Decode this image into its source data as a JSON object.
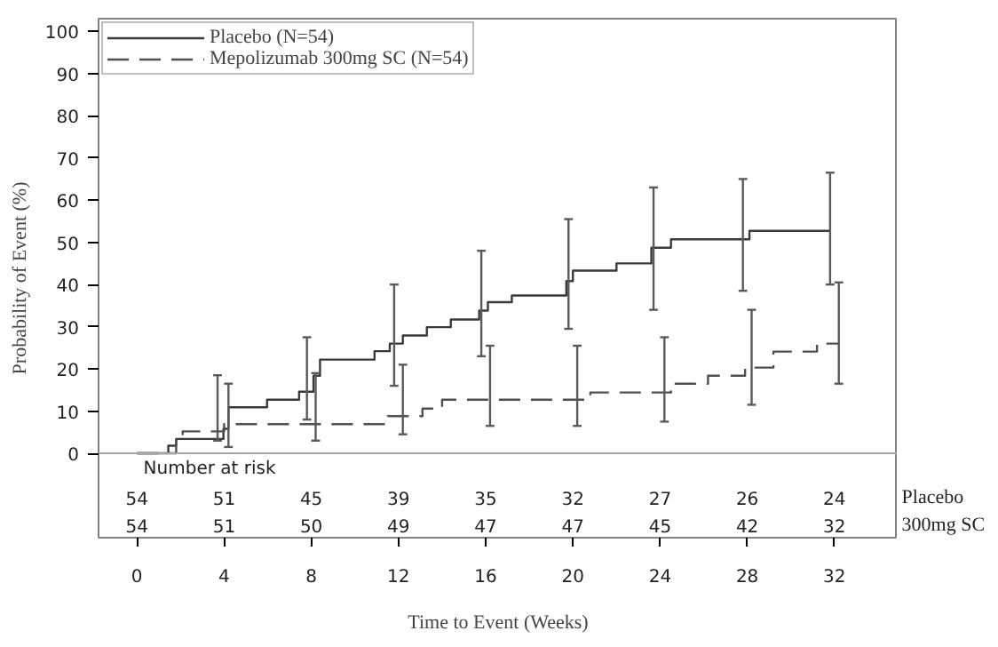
{
  "chart_data": {
    "type": "step",
    "xlabel": "Time to Event (Weeks)",
    "ylabel": "Probability of Event (%)",
    "xlim": [
      -1.76,
      34.9
    ],
    "ylim": [
      -20,
      103
    ],
    "xticks": [
      0,
      4,
      8,
      12,
      16,
      20,
      24,
      28,
      32
    ],
    "yticks": [
      0,
      10,
      20,
      30,
      40,
      50,
      60,
      70,
      80,
      90,
      100
    ],
    "grid": false,
    "legend": "top left",
    "marker": "none",
    "ref_lines": [
      {
        "axis": "y",
        "value": 0,
        "color": "#a6a6a6"
      }
    ],
    "series": [
      {
        "name": "Placebo (N=54)",
        "color": "#3a3a3a",
        "line_style": "solid",
        "x": [
          0,
          1.44,
          1.8,
          3.7,
          3.97,
          4.2,
          5.97,
          7.44,
          7.8,
          8.1,
          8.4,
          10.9,
          11.6,
          11.8,
          12.2,
          13.3,
          14.4,
          15.7,
          15.8,
          16.1,
          17.2,
          19.7,
          19.8,
          20.0,
          22.0,
          23.6,
          23.7,
          24.5,
          27.8,
          28.1,
          31.8
        ],
        "values": [
          0,
          1.8,
          3.4,
          3.4,
          5.8,
          10.9,
          12.7,
          14.6,
          14.6,
          18.4,
          22.2,
          24.2,
          26,
          26,
          27.9,
          29.9,
          31.7,
          33.8,
          33.8,
          35.8,
          37.4,
          40.8,
          40.8,
          43.3,
          45,
          48.7,
          48.7,
          50.7,
          50.7,
          52.7,
          52.7
        ],
        "errors": [
          null,
          null,
          null,
          [
            3,
            18.5
          ],
          null,
          null,
          null,
          null,
          [
            8,
            27.5
          ],
          null,
          null,
          null,
          null,
          [
            16,
            40
          ],
          null,
          null,
          null,
          null,
          [
            23,
            48
          ],
          null,
          null,
          null,
          [
            29.5,
            55.5
          ],
          null,
          null,
          null,
          [
            34,
            63
          ],
          null,
          [
            38.5,
            65
          ],
          null,
          [
            40,
            66.5
          ]
        ]
      },
      {
        "name": "Mepolizumab 300mg SC (N=54)",
        "color": "#505050",
        "line_style": "dashed",
        "x": [
          0,
          1.8,
          2.1,
          4.0,
          4.2,
          8.2,
          11.5,
          12.2,
          13.1,
          14.0,
          16.2,
          20.2,
          20.8,
          24.2,
          24.5,
          26.2,
          27.9,
          28.2,
          29.2,
          31.2,
          32.2
        ],
        "values": [
          0,
          3.4,
          5.2,
          6.9,
          6.9,
          6.9,
          8.8,
          8.8,
          10.6,
          12.7,
          12.7,
          12.7,
          14.4,
          14.4,
          16.5,
          18.4,
          20.3,
          20.3,
          24.1,
          26.0,
          26.0
        ],
        "errors": [
          null,
          null,
          null,
          null,
          [
            1.5,
            16.5
          ],
          [
            3,
            19
          ],
          null,
          [
            4.5,
            21
          ],
          null,
          null,
          [
            6.5,
            25.5
          ],
          [
            6.5,
            25.5
          ],
          null,
          [
            7.5,
            27.5
          ],
          null,
          null,
          null,
          [
            11.5,
            34
          ],
          null,
          null,
          [
            16.5,
            40.5
          ]
        ]
      }
    ],
    "annotations": [
      "Number at risk",
      "54",
      "51",
      "45",
      "39",
      "35",
      "32",
      "27",
      "26",
      "24",
      "54",
      "51",
      "50",
      "49",
      "47",
      "47",
      "45",
      "42",
      "32",
      "Placebo",
      "300mg SC"
    ]
  }
}
